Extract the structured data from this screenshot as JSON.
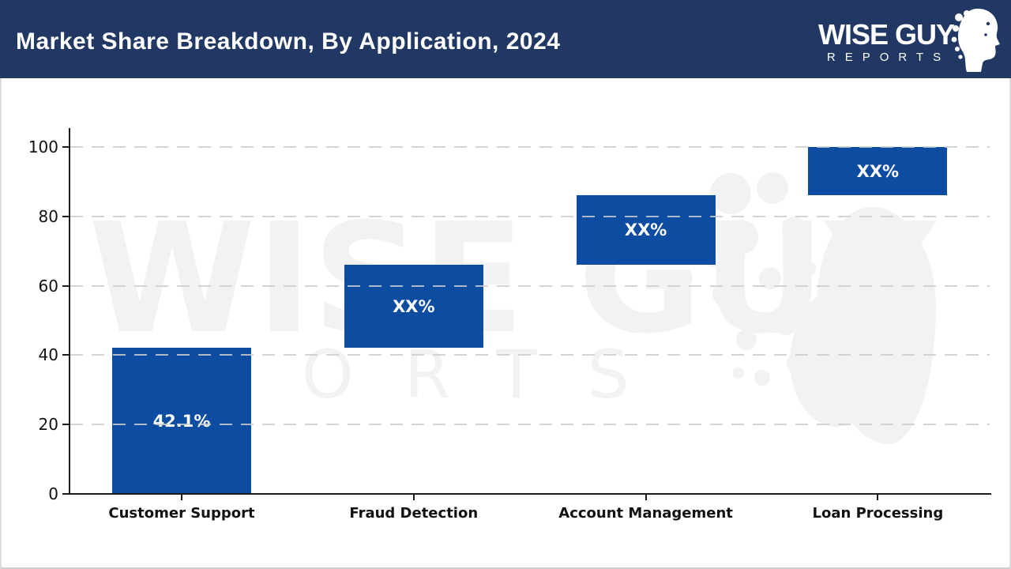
{
  "page": {
    "background": "#ffffff",
    "border_color": "#dcdcdc"
  },
  "header": {
    "title": "Market Share Breakdown, By Application, 2024",
    "background": "#213764",
    "text_color": "#ffffff",
    "logo": {
      "line1": "WISE GUY",
      "line2": "REPORTS"
    }
  },
  "watermark": {
    "line1": "WISE GUY",
    "line2": "EPORTS"
  },
  "chart_data": {
    "type": "bar",
    "subtype": "waterfall",
    "title": "Market Share Breakdown, By Application, 2024",
    "categories": [
      "Customer Support",
      "Fraud Detection",
      "Account Management",
      "Loan Processing"
    ],
    "segments": [
      {
        "category": "Customer Support",
        "start": 0,
        "end": 42.1,
        "label": "42.1%"
      },
      {
        "category": "Fraud Detection",
        "start": 42.1,
        "end": 66,
        "label": "XX%"
      },
      {
        "category": "Account Management",
        "start": 66,
        "end": 86,
        "label": "XX%"
      },
      {
        "category": "Loan Processing",
        "start": 86,
        "end": 100,
        "label": "XX%"
      }
    ],
    "ylim": [
      0,
      100
    ],
    "yticks": [
      0,
      20,
      40,
      60,
      80,
      100
    ],
    "grid": "horizontal-dashed",
    "bar_color": "#0d4da1",
    "bar_label_color": "#ffffff",
    "axis_color": "#1a1a1a",
    "tick_label_color": "#111111"
  }
}
